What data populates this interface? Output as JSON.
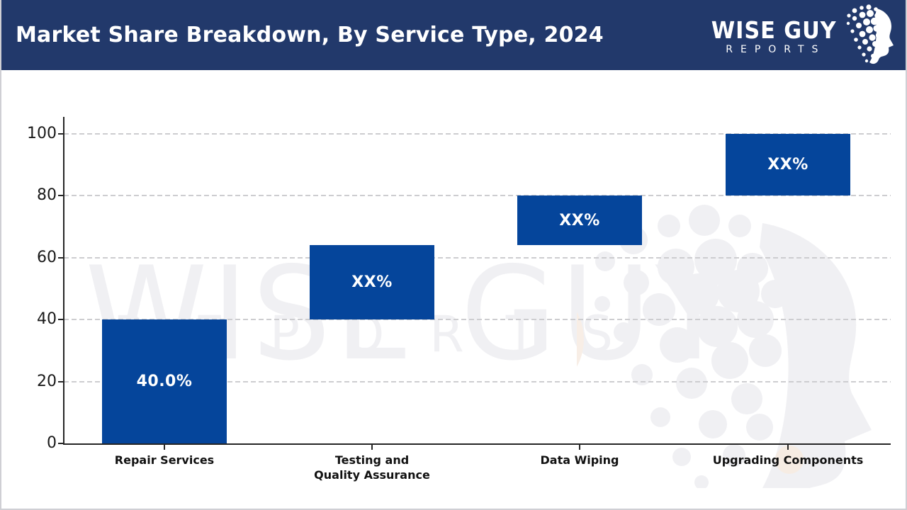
{
  "header": {
    "title": "Market Share Breakdown, By Service Type, 2024",
    "logo": {
      "wordmark": "WISE GUY",
      "subtext": "REPORTS"
    }
  },
  "watermark": {
    "line1": "WISE GUY",
    "line2": "REPORTS"
  },
  "chart_data": {
    "type": "bar",
    "subtype": "waterfall-stacked-segments",
    "title": "Market Share Breakdown, By Service Type, 2024",
    "categories": [
      "Repair Services",
      "Testing and\nQuality Assurance",
      "Data Wiping",
      "Upgrading Components"
    ],
    "bars": [
      {
        "category": "Repair Services",
        "start": 0,
        "end": 40,
        "value": 40,
        "label": "40.0%"
      },
      {
        "category": "Testing and\nQuality Assurance",
        "start": 40,
        "end": 64,
        "value": 24,
        "label": "XX%"
      },
      {
        "category": "Data Wiping",
        "start": 64,
        "end": 80,
        "value": 16,
        "label": "XX%"
      },
      {
        "category": "Upgrading Components",
        "start": 80,
        "end": 100,
        "value": 20,
        "label": "XX%"
      }
    ],
    "yticks": [
      0,
      20,
      40,
      60,
      80,
      100
    ],
    "ylim": [
      0,
      100
    ],
    "xlabel": "",
    "ylabel": "",
    "grid": "horizontal-dashed",
    "legend": "none",
    "bar_color": "#05459B",
    "bar_label_color": "#ffffff"
  },
  "colors": {
    "header_bg": "#22396B",
    "bar": "#05459B",
    "grid": "#cdcdd0",
    "axis": "#262626",
    "watermark": "#f0f0f3",
    "card_border": "#cfcfd4"
  }
}
